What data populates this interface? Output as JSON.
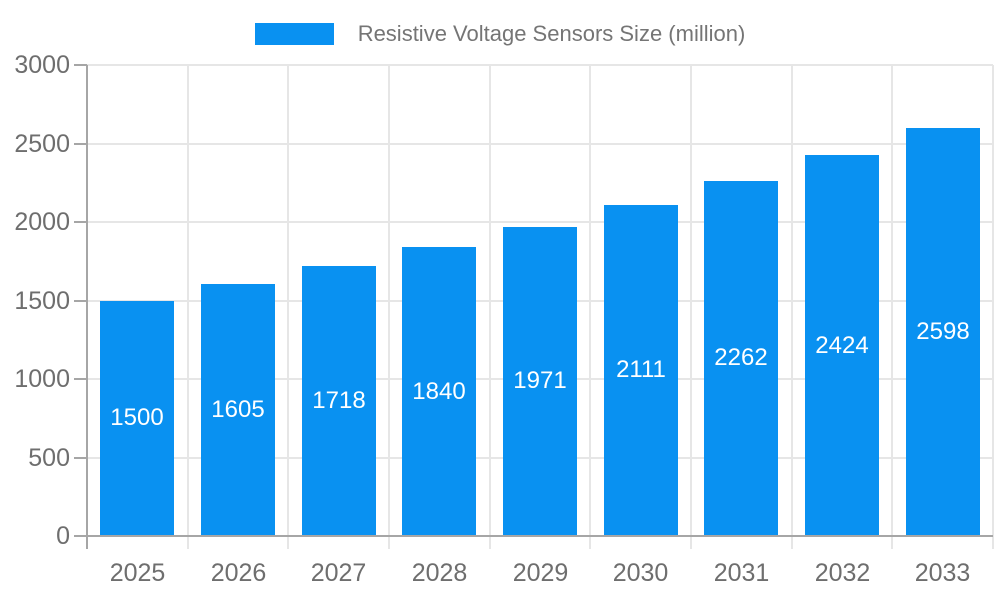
{
  "chart_data": {
    "type": "bar",
    "title": "Resistive Voltage Sensors Size (million)",
    "categories": [
      "2025",
      "2026",
      "2027",
      "2028",
      "2029",
      "2030",
      "2031",
      "2032",
      "2033"
    ],
    "values": [
      1500,
      1605,
      1718,
      1840,
      1971,
      2111,
      2262,
      2424,
      2598
    ],
    "series_name": "Resistive Voltage Sensors Size (million)",
    "xlabel": "",
    "ylabel": "",
    "ylim": [
      0,
      3000
    ],
    "yticks": [
      0,
      500,
      1000,
      1500,
      2000,
      2500,
      3000
    ],
    "grid": true,
    "legend_position": "top",
    "value_labels_inside_bars": true
  },
  "colors": {
    "bar": "#0991f1",
    "value_label": "#ffffff",
    "axis_line": "#a6a6a6",
    "gridline": "#e6e6e6",
    "tick_label": "#6e6e6e",
    "legend_text": "#757575",
    "background": "#ffffff"
  }
}
